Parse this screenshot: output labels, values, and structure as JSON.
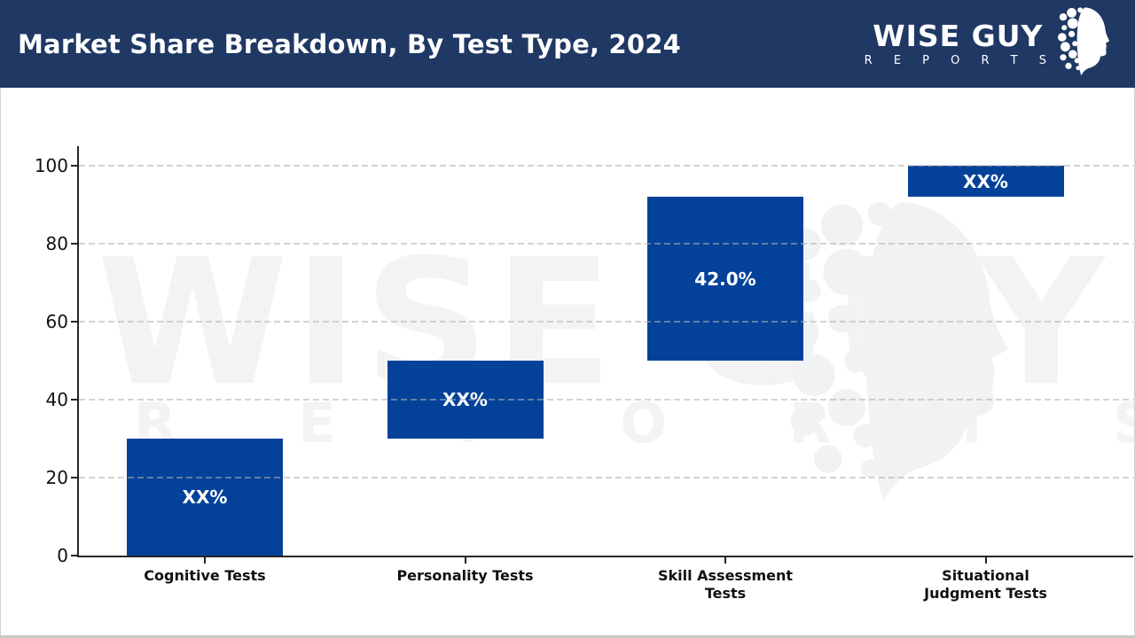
{
  "header": {
    "title": "Market Share Breakdown, By Test Type, 2024",
    "logo_main": "WISE GUY",
    "logo_sub": "R E P O R T S"
  },
  "watermark": {
    "line1": "WISE GUY",
    "line2": "R E P O R T S"
  },
  "colors": {
    "header_bg": "#1f3864",
    "bar": "#04429a",
    "axis": "#262626",
    "gridline": "#d8d8d8",
    "bar_label": "#ffffff",
    "tick_text": "#111111",
    "watermark": "#f3f3f5"
  },
  "chart_data": {
    "type": "bar",
    "subtype": "waterfall-floating-bars",
    "title": "Market Share Breakdown, By Test Type, 2024",
    "categories": [
      "Cognitive Tests",
      "Personality Tests",
      "Skill Assessment Tests",
      "Situational Judgment Tests"
    ],
    "series": [
      {
        "category": "Cognitive Tests",
        "label_lines": [
          "Cognitive Tests"
        ],
        "base": 0,
        "top": 30,
        "label": "XX%"
      },
      {
        "category": "Personality Tests",
        "label_lines": [
          "Personality Tests"
        ],
        "base": 30,
        "top": 50,
        "label": "XX%"
      },
      {
        "category": "Skill Assessment Tests",
        "label_lines": [
          "Skill Assessment",
          "Tests"
        ],
        "base": 50,
        "top": 92,
        "label": "42.0%"
      },
      {
        "category": "Situational Judgment Tests",
        "label_lines": [
          "Situational",
          "Judgment Tests"
        ],
        "base": 92,
        "top": 100,
        "label": "XX%"
      }
    ],
    "yticks": [
      0,
      20,
      40,
      60,
      80,
      100
    ],
    "ylim": [
      0,
      100
    ],
    "xlabel": "",
    "ylabel": "",
    "grid": "dashed horizontal, drawn over bars",
    "legend": "none"
  }
}
